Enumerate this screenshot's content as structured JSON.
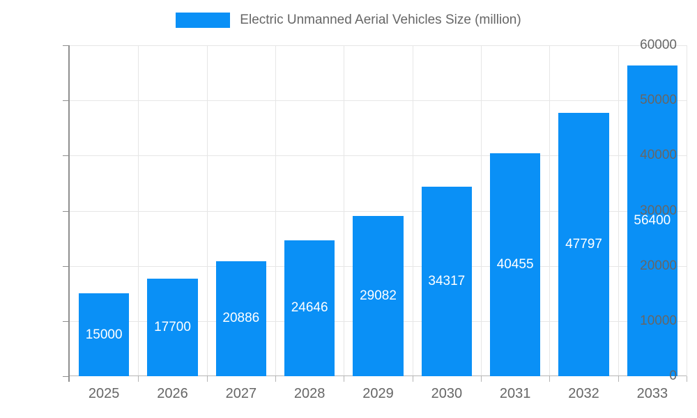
{
  "chart_data": {
    "type": "bar",
    "title": "",
    "legend": {
      "label": "Electric Unmanned Aerial Vehicles Size (million)",
      "position": "top"
    },
    "categories": [
      "2025",
      "2026",
      "2027",
      "2028",
      "2029",
      "2030",
      "2031",
      "2032",
      "2033"
    ],
    "series": [
      {
        "name": "Electric Unmanned Aerial Vehicles Size (million)",
        "values": [
          15000,
          17700,
          20886,
          24646,
          29082,
          34317,
          40455,
          47797,
          56400
        ]
      }
    ],
    "bar_value_labels": [
      "15000",
      "17700",
      "20886",
      "24646",
      "29082",
      "34317",
      "40455",
      "47797",
      "56400"
    ],
    "xlabel": "",
    "ylabel": "",
    "ylim": [
      0,
      60000
    ],
    "yticks": [
      0,
      10000,
      20000,
      30000,
      40000,
      50000,
      60000
    ],
    "grid": true,
    "legend_position": "top",
    "colors": {
      "bar": "#0a90f6",
      "grid": "#e6e6e6",
      "axis": "#8f8f8f",
      "baseline": "#b5b5b5",
      "tick_label": "#666666",
      "legend_text": "#666666",
      "value_label": "#ffffff",
      "background": "#ffffff"
    }
  }
}
